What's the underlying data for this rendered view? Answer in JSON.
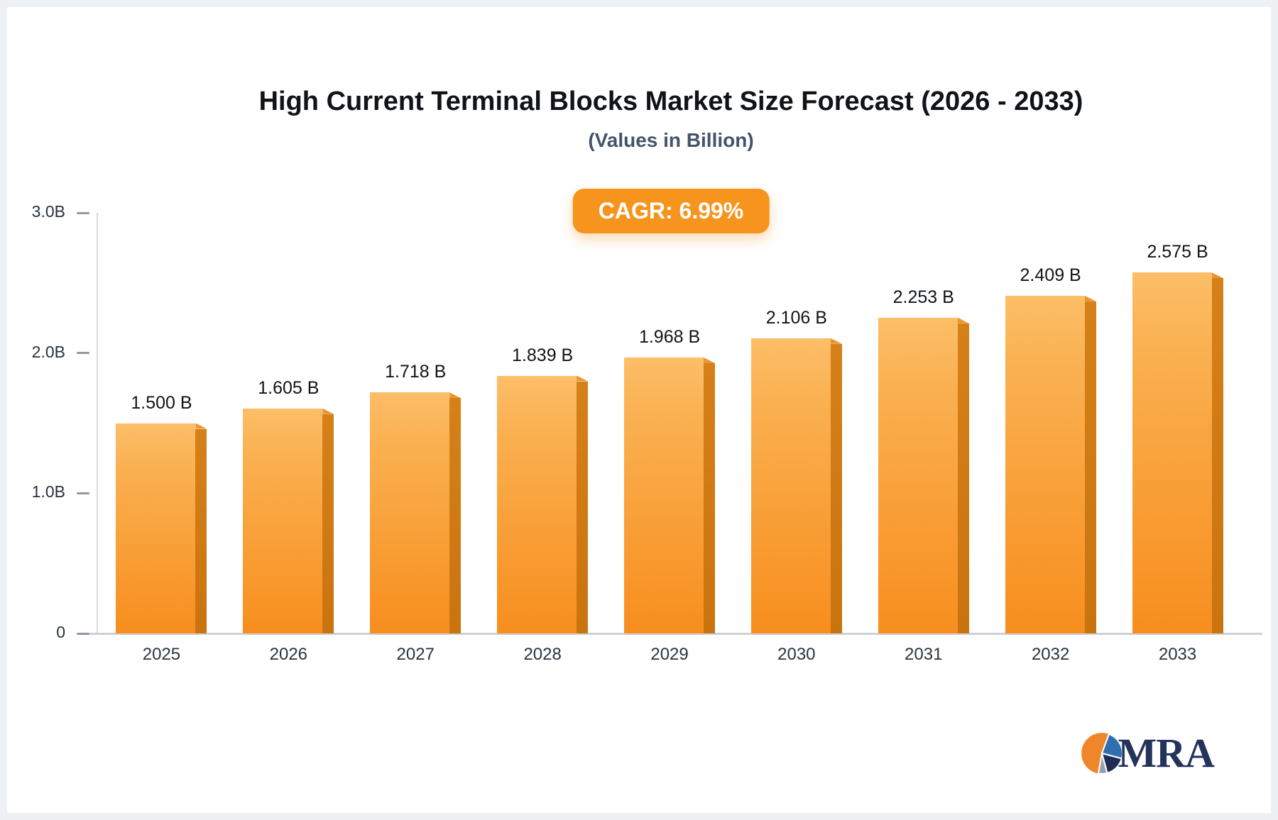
{
  "header": {
    "title": "High Current Terminal Blocks Market Size Forecast (2026 - 2033)",
    "subtitle": "(Values in Billion)"
  },
  "badge": {
    "label": "CAGR: 6.99%",
    "color": "#f7941d"
  },
  "chart_data": {
    "type": "bar",
    "title": "High Current Terminal Blocks Market Size Forecast (2026 - 2033)",
    "subtitle": "(Values in Billion)",
    "annotation": "CAGR: 6.99%",
    "categories": [
      "2025",
      "2026",
      "2027",
      "2028",
      "2029",
      "2030",
      "2031",
      "2032",
      "2033"
    ],
    "values": [
      1.5,
      1.605,
      1.718,
      1.839,
      1.968,
      2.106,
      2.253,
      2.409,
      2.575
    ],
    "value_labels": [
      "1.500 B",
      "1.605 B",
      "1.718 B",
      "1.839 B",
      "1.968 B",
      "2.106 B",
      "2.253 B",
      "2.409 B",
      "2.575 B"
    ],
    "xlabel": "",
    "ylabel": "",
    "ylim": [
      0,
      3
    ],
    "yticks": [
      {
        "value": 0,
        "label": "0"
      },
      {
        "value": 1,
        "label": "1.0B"
      },
      {
        "value": 2,
        "label": "2.0B"
      },
      {
        "value": 3,
        "label": "3.0B"
      }
    ],
    "grid": false,
    "legend": false,
    "colors": {
      "bar_top": "#fcbe68",
      "bar_bottom": "#f78e1e",
      "bar_side": "#cf7a15",
      "accent": "#f7941d"
    }
  },
  "logo": {
    "text": "MRA",
    "icon": "pie-icon",
    "colors": {
      "orange": "#f0862a",
      "blue": "#2f6fae",
      "navy": "#1e2c54",
      "gray": "#98a0ad",
      "text": "#24335c"
    }
  }
}
